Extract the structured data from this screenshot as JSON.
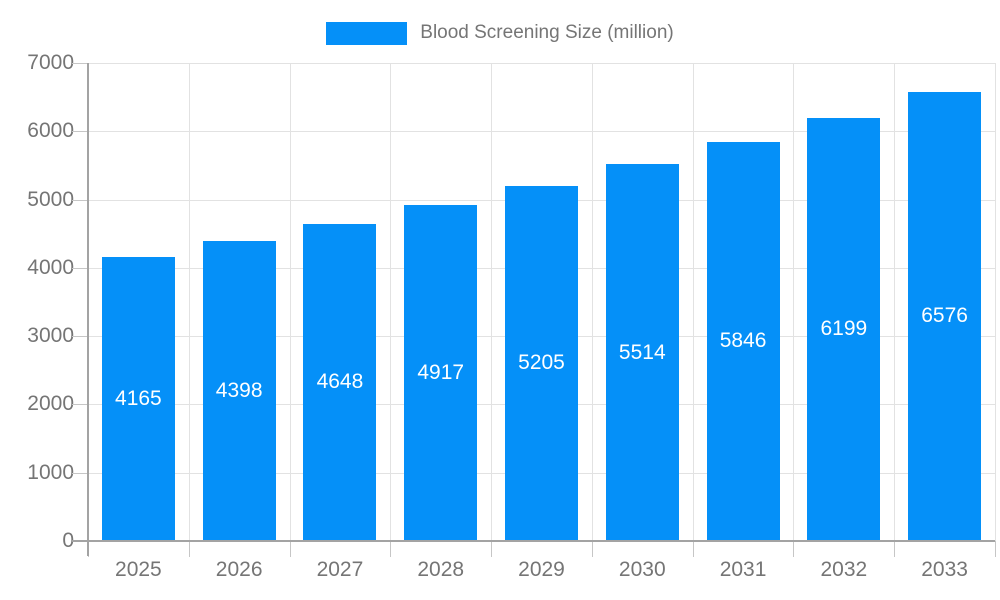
{
  "chart_data": {
    "type": "bar",
    "title": "Blood Screening Size (million)",
    "legend": {
      "label": "Blood Screening Size (million)",
      "position": "top-center"
    },
    "categories": [
      "2025",
      "2026",
      "2027",
      "2028",
      "2029",
      "2030",
      "2031",
      "2032",
      "2033"
    ],
    "values": [
      4165,
      4398,
      4648,
      4917,
      5205,
      5514,
      5846,
      6199,
      6576
    ],
    "bar_labels_shown": true,
    "bar_label_position": "center-of-bar",
    "xlabel": "",
    "ylabel": "",
    "ylim": [
      0,
      7000
    ],
    "yticks": [
      0,
      1000,
      2000,
      3000,
      4000,
      5000,
      6000,
      7000
    ],
    "grid": true
  },
  "colors": {
    "bar": "#0590f8",
    "bar_value_text": "#ffffff",
    "axis_text": "#757575",
    "legend_text": "#757575",
    "grid_line": "#e2e2e2",
    "tick_line": "#c6c6c6",
    "axis_line": "#a3a3a3",
    "background": "#ffffff"
  }
}
